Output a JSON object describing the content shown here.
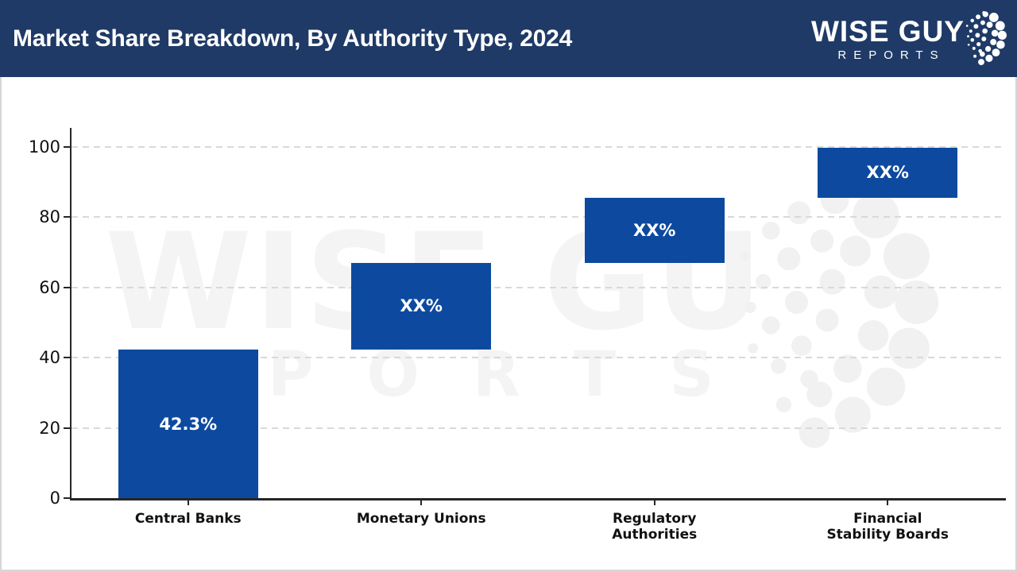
{
  "header": {
    "title": "Market Share Breakdown, By Authority Type, 2024",
    "logo": {
      "brand_line1": "WISE GUY",
      "brand_line2": "REPORTS"
    }
  },
  "watermark": {
    "line1": "WISE GU",
    "line2": "P O R T S"
  },
  "colors": {
    "header_bg": "#1f3a66",
    "bar": "#0d4a9f",
    "bar_label": "#ffffff",
    "grid": "#d9d9d9",
    "axis": "#262626",
    "tick_label": "#111111",
    "watermark": "#f4f4f4"
  },
  "chart_data": {
    "type": "bar",
    "variant": "stacked-waterfall",
    "title": "Market Share Breakdown, By Authority Type, 2024",
    "categories": [
      "Central Banks",
      "Monetary Unions",
      "Regulatory\nAuthorities",
      "Financial\nStability Boards"
    ],
    "segments": [
      {
        "category": "Central Banks",
        "start": 0,
        "end": 42.3,
        "label": "42.3%"
      },
      {
        "category": "Monetary Unions",
        "start": 42.3,
        "end": 67,
        "label": "XX%"
      },
      {
        "category": "Regulatory\nAuthorities",
        "start": 67,
        "end": 85.5,
        "label": "XX%"
      },
      {
        "category": "Financial\nStability Boards",
        "start": 85.5,
        "end": 99.8,
        "label": "XX%"
      }
    ],
    "masked_value_placeholder": "XX%",
    "xlabel": "",
    "ylabel": "",
    "ylim": [
      0,
      105
    ],
    "yticks": [
      0,
      20,
      40,
      60,
      80,
      100
    ],
    "grid": "horizontal-dashed",
    "legend": "none"
  }
}
